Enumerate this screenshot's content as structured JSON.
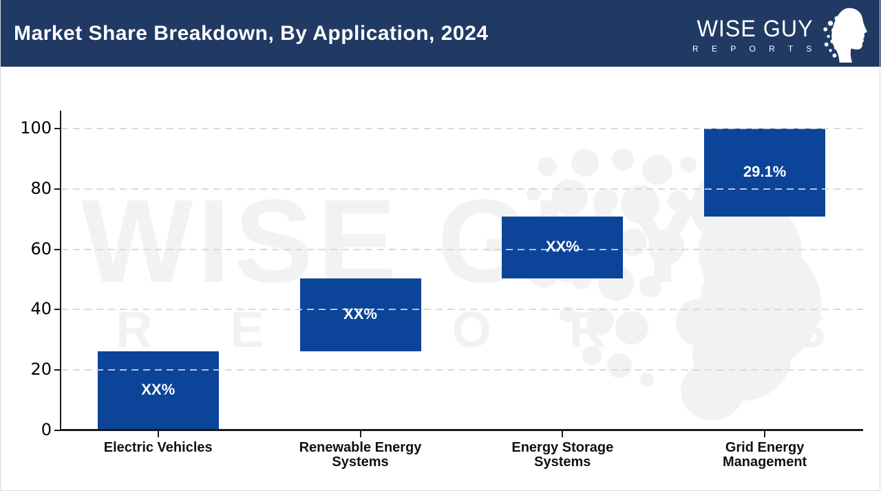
{
  "header": {
    "title": "Market Share Breakdown, By Application, 2024",
    "bg_color": "#213A64",
    "logo": {
      "line1": "WISE GUY",
      "line2": "R E P O R T S"
    }
  },
  "watermark": {
    "line1": "WISE GUY",
    "line2": "R E P O R T S"
  },
  "chart_data": {
    "type": "bar",
    "subtype": "waterfall",
    "title": "Market Share Breakdown, By Application, 2024",
    "categories": [
      "Electric Vehicles",
      "Renewable Energy\nSystems",
      "Energy Storage\nSystems",
      "Grid Energy\nManagement"
    ],
    "segments": [
      {
        "category": "Electric Vehicles",
        "label": "XX%",
        "start": 0,
        "end": 26.2
      },
      {
        "category": "Renewable Energy Systems",
        "label": "XX%",
        "start": 26.2,
        "end": 50.3
      },
      {
        "category": "Energy Storage Systems",
        "label": "XX%",
        "start": 50.3,
        "end": 70.9
      },
      {
        "category": "Grid Energy Management",
        "label": "29.1%",
        "start": 70.9,
        "end": 100
      }
    ],
    "yticks": [
      0,
      20,
      40,
      60,
      80,
      100
    ],
    "ylim": [
      0,
      105.5
    ],
    "xlabel": "",
    "ylabel": "",
    "legend": "none",
    "grid": "dashed-horizontal",
    "bar_color": "#0B4499",
    "bar_label_color": "#FFFFFF",
    "axis_color": "#1A1A1A"
  }
}
